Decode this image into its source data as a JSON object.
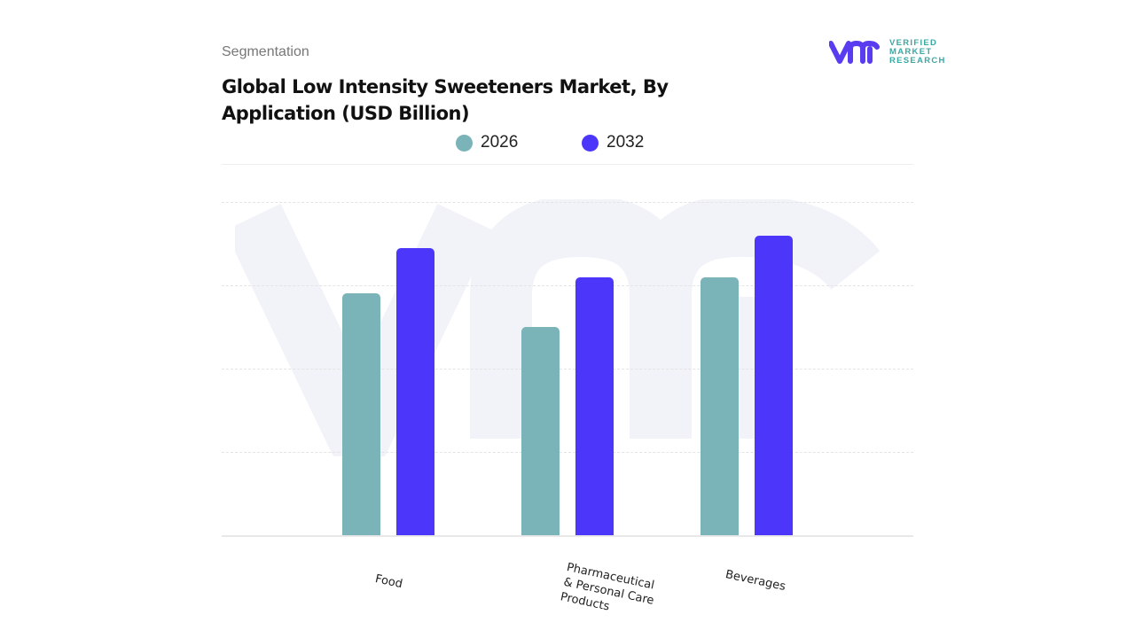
{
  "header": {
    "section": "Segmentation",
    "title": "Global Low Intensity Sweeteners Market, By Application (USD Billion)"
  },
  "logo": {
    "mark": "vmr",
    "text": "VERIFIED MARKET RESEARCH"
  },
  "colors": {
    "s2026": "#7ab3b8",
    "s2032": "#4b36fa",
    "logo_mark": "#5a3cf0",
    "logo_text": "#3aa9a4"
  },
  "chart_data": {
    "type": "bar",
    "title": "Global Low Intensity Sweeteners Market, By Application (USD Billion)",
    "categories": [
      "Food",
      "Pharmaceutical & Personal Care Products",
      "Beverages"
    ],
    "series": [
      {
        "name": "2026",
        "values": [
          2.9,
          2.5,
          3.1
        ]
      },
      {
        "name": "2032",
        "values": [
          3.45,
          3.1,
          3.6
        ]
      }
    ],
    "ylim": [
      0,
      4
    ],
    "grid": true,
    "legend": "top-center",
    "xlabel": "",
    "ylabel": ""
  }
}
